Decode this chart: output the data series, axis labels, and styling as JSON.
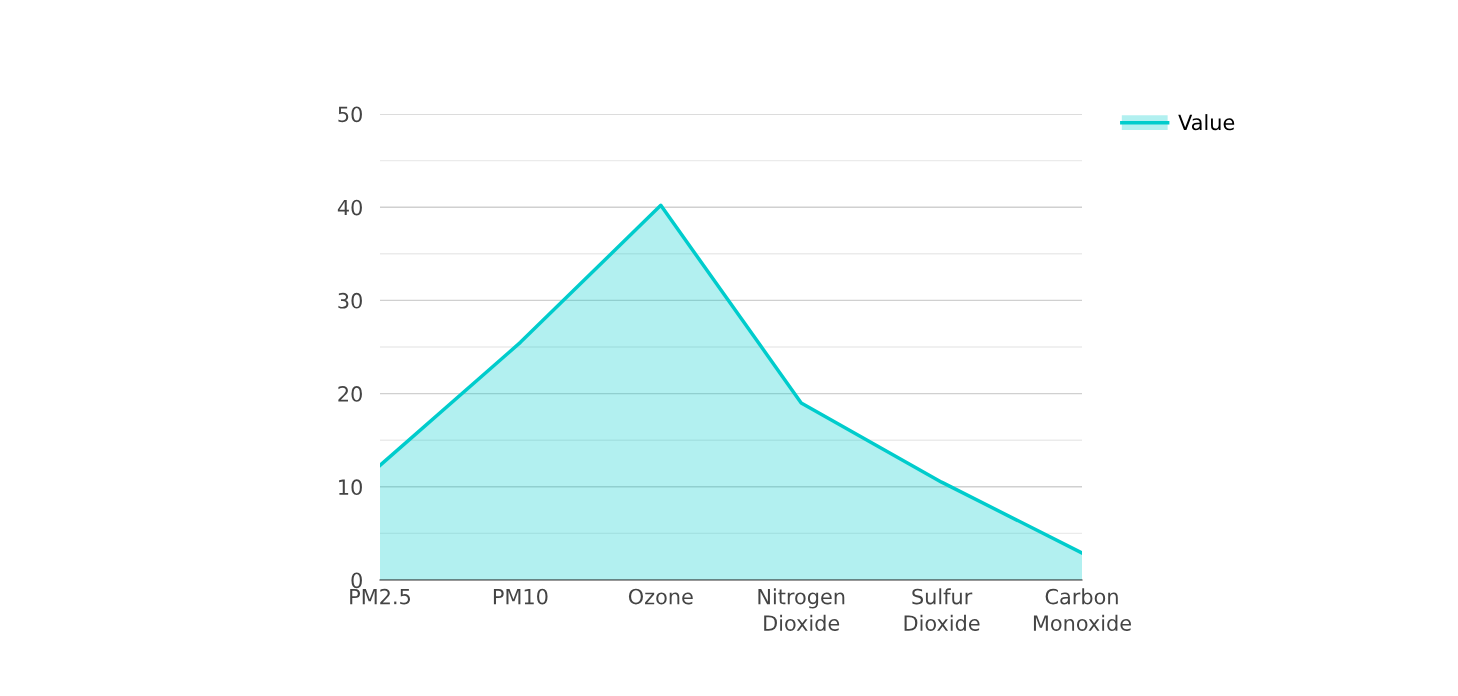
{
  "chart_data": {
    "type": "area",
    "categories": [
      "PM2.5",
      "PM10",
      "Ozone",
      "Nitrogen Dioxide",
      "Sulfur Dioxide",
      "Carbon Monoxide"
    ],
    "series": [
      {
        "name": "Value",
        "color": "#00cccc",
        "values": [
          12.3,
          25.5,
          40.2,
          19.0,
          10.5,
          2.9
        ]
      }
    ],
    "ylim": [
      0,
      50
    ],
    "yticks": [
      0,
      {
        "value": 5,
        "label": null
      },
      10,
      {
        "value": 15,
        "label": null
      },
      20,
      {
        "value": 25,
        "label": null
      },
      30,
      {
        "value": 35,
        "label": null
      },
      40,
      {
        "value": 45,
        "label": null
      },
      50
    ],
    "grid": "y",
    "legend": "top right"
  }
}
